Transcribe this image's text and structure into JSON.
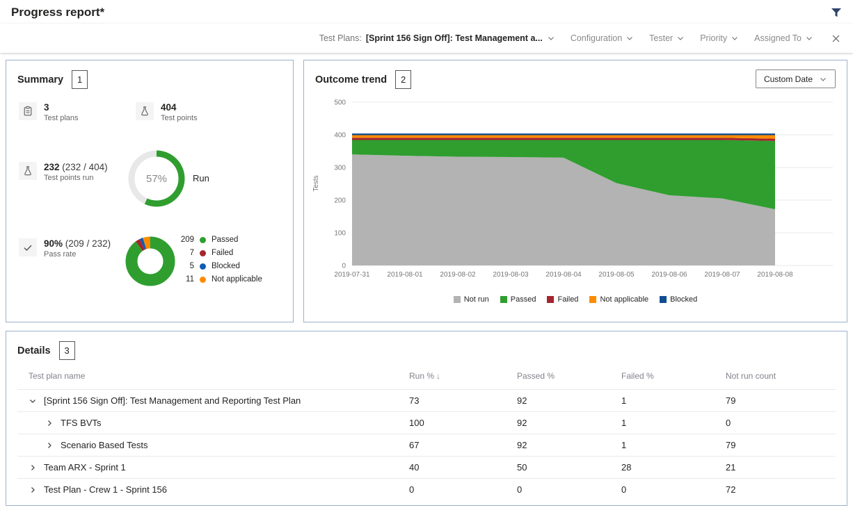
{
  "header": {
    "title": "Progress report*"
  },
  "filter_bar": {
    "test_plans_label": "Test Plans:",
    "test_plans_value": "[Sprint 156 Sign Off]: Test Management a...",
    "filters": [
      "Configuration",
      "Tester",
      "Priority",
      "Assigned To"
    ]
  },
  "summary": {
    "title": "Summary",
    "badge": "1",
    "stats": [
      {
        "value": "3",
        "suffix": "",
        "label": "Test plans"
      },
      {
        "value": "404",
        "suffix": "",
        "label": "Test points"
      },
      {
        "value": "232",
        "suffix": "(232 / 404)",
        "label": "Test points run"
      },
      {
        "value": "90%",
        "suffix": "(209 / 232)",
        "label": "Pass rate"
      }
    ],
    "run_donut": {
      "percent": 57,
      "percent_text": "57%",
      "label": "Run",
      "color": "#2f9e2f",
      "track_color": "#e8e8e8"
    }
  },
  "outcome_trend": {
    "title": "Outcome trend",
    "badge": "2",
    "date_filter": "Custom Date"
  },
  "details": {
    "title": "Details",
    "badge": "3",
    "columns": [
      "Test plan name",
      "Run %",
      "Passed %",
      "Failed %",
      "Not run count"
    ],
    "sort_indicator": "↓",
    "rows": [
      {
        "name": "[Sprint 156 Sign Off]: Test Management and Reporting Test Plan",
        "run": "73",
        "passed": "92",
        "failed": "1",
        "not_run": "79",
        "level": 0,
        "expanded": true
      },
      {
        "name": "TFS BVTs",
        "run": "100",
        "passed": "92",
        "failed": "1",
        "not_run": "0",
        "level": 1,
        "expanded": false
      },
      {
        "name": "Scenario Based Tests",
        "run": "67",
        "passed": "92",
        "failed": "1",
        "not_run": "79",
        "level": 1,
        "expanded": false
      },
      {
        "name": "Team ARX - Sprint 1",
        "run": "40",
        "passed": "50",
        "failed": "28",
        "not_run": "21",
        "level": 0,
        "expanded": false
      },
      {
        "name": "Test Plan - Crew 1 - Sprint 156",
        "run": "0",
        "passed": "0",
        "failed": "0",
        "not_run": "72",
        "level": 0,
        "expanded": false
      }
    ]
  },
  "chart_data": [
    {
      "id": "outcome_trend",
      "type": "area",
      "stacked": true,
      "title": "Outcome trend",
      "x": [
        "2019-07-31",
        "2019-08-01",
        "2019-08-02",
        "2019-08-03",
        "2019-08-04",
        "2019-08-05",
        "2019-08-06",
        "2019-08-07",
        "2019-08-08"
      ],
      "series": [
        {
          "name": "Not run",
          "color": "#b3b3b3",
          "values": [
            340,
            336,
            333,
            332,
            330,
            252,
            215,
            205,
            172
          ]
        },
        {
          "name": "Passed",
          "color": "#2f9e2f",
          "values": [
            44,
            48,
            51,
            52,
            54,
            132,
            169,
            179,
            209
          ]
        },
        {
          "name": "Failed",
          "color": "#a4262c",
          "values": [
            7,
            7,
            7,
            7,
            7,
            7,
            7,
            7,
            7
          ]
        },
        {
          "name": "Not applicable",
          "color": "#ff8c00",
          "values": [
            8,
            8,
            8,
            8,
            8,
            8,
            8,
            8,
            11
          ]
        },
        {
          "name": "Blocked",
          "color": "#0f4d92",
          "values": [
            5,
            5,
            5,
            5,
            5,
            5,
            5,
            5,
            5
          ]
        }
      ],
      "ylabel": "Tests",
      "ylim": [
        0,
        500
      ],
      "yticks": [
        0,
        100,
        200,
        300,
        400,
        500
      ],
      "grid": true,
      "legend_position": "bottom"
    },
    {
      "id": "run_donut",
      "type": "donut",
      "label": "Run",
      "percent": 57
    },
    {
      "id": "outcome_donut",
      "type": "donut",
      "total": 232,
      "segments": [
        {
          "label": "Passed",
          "value": 209,
          "color": "#2f9e2f"
        },
        {
          "label": "Failed",
          "value": 7,
          "color": "#a4262c"
        },
        {
          "label": "Blocked",
          "value": 5,
          "color": "#0f5bb5"
        },
        {
          "label": "Not applicable",
          "value": 11,
          "color": "#ff8c00"
        }
      ]
    }
  ]
}
